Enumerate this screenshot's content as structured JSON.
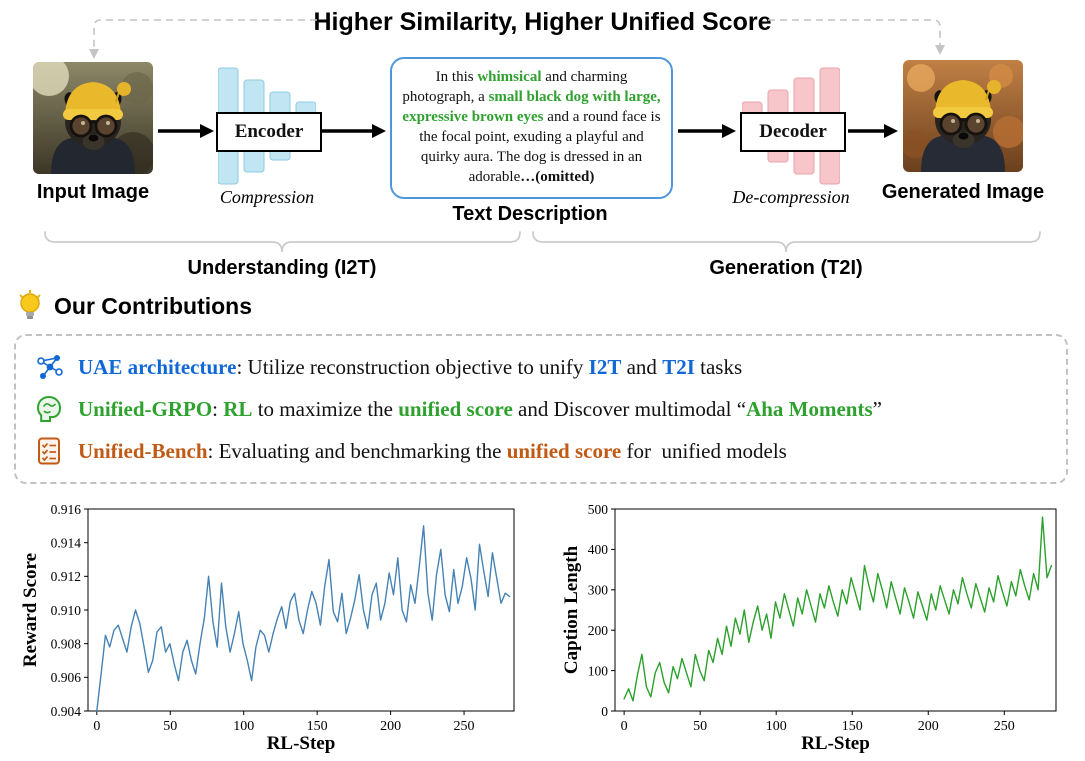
{
  "header": {
    "title": "Higher Similarity, Higher Unified Score"
  },
  "colors": {
    "green": "#2fa12f",
    "blue": "#1068d6",
    "orange": "#c05a15",
    "black": "#111111"
  },
  "pipeline": {
    "input_label": "Input Image",
    "encoder_label": "Encoder",
    "compression_label": "Compression",
    "decoder_label": "Decoder",
    "decompression_label": "De-compression",
    "generated_label": "Generated Image",
    "brace_left_label": "Understanding (I2T)",
    "brace_right_label": "Generation (T2I)",
    "text_box": {
      "label": "Text Description",
      "segments": [
        {
          "t": "In this ",
          "b": false,
          "c": ""
        },
        {
          "t": "whimsical",
          "b": true,
          "c": "green"
        },
        {
          "t": " and charming photograph, a ",
          "b": false,
          "c": ""
        },
        {
          "t": "small black dog with large, expressive brown eyes",
          "b": true,
          "c": "green"
        },
        {
          "t": " and a round face is the focal point, exuding a playful and quirky aura. The dog is dressed in an adorable",
          "b": false,
          "c": ""
        },
        {
          "t": "…(omitted)",
          "b": true,
          "c": ""
        }
      ]
    }
  },
  "contributions": {
    "heading": "Our Contributions",
    "items": [
      {
        "icon": "network-icon",
        "segments": [
          {
            "t": "UAE architecture",
            "b": true,
            "c": "blue"
          },
          {
            "t": ": Utilize reconstruction objective to unify ",
            "b": false,
            "c": ""
          },
          {
            "t": "I2T",
            "b": true,
            "c": "blue"
          },
          {
            "t": " and ",
            "b": false,
            "c": ""
          },
          {
            "t": "T2I",
            "b": true,
            "c": "blue"
          },
          {
            "t": " tasks",
            "b": false,
            "c": ""
          }
        ]
      },
      {
        "icon": "brain-icon",
        "segments": [
          {
            "t": "Unified-GRPO",
            "b": true,
            "c": "green"
          },
          {
            "t": ": ",
            "b": false,
            "c": ""
          },
          {
            "t": "RL",
            "b": true,
            "c": "green"
          },
          {
            "t": " to maximize the ",
            "b": false,
            "c": ""
          },
          {
            "t": "unified score",
            "b": true,
            "c": "green"
          },
          {
            "t": " and Discover multimodal “",
            "b": false,
            "c": ""
          },
          {
            "t": "Aha Moments",
            "b": true,
            "c": "green"
          },
          {
            "t": "”",
            "b": false,
            "c": ""
          }
        ]
      },
      {
        "icon": "checklist-icon",
        "segments": [
          {
            "t": "Unified-Bench",
            "b": true,
            "c": "orange"
          },
          {
            "t": ": Evaluating and benchmarking the ",
            "b": false,
            "c": ""
          },
          {
            "t": "unified score",
            "b": true,
            "c": "orange"
          },
          {
            "t": " for  unified models",
            "b": false,
            "c": ""
          }
        ]
      }
    ]
  },
  "chart_data": [
    {
      "type": "line",
      "title": "",
      "xlabel": "RL-Step",
      "ylabel": "Reward Score",
      "legend": null,
      "grid": false,
      "color": "#4682b4",
      "xlim": [
        -6,
        284
      ],
      "ylim": [
        0.904,
        0.916
      ],
      "xticks": [
        0,
        50,
        100,
        150,
        200,
        250
      ],
      "yticks": [
        0.904,
        0.906,
        0.908,
        0.91,
        0.912,
        0.914,
        0.916
      ],
      "ytick_decimals": 3,
      "x_max": 281,
      "values": [
        0.904,
        0.9062,
        0.9085,
        0.9078,
        0.9088,
        0.9091,
        0.9083,
        0.9075,
        0.909,
        0.91,
        0.9092,
        0.9078,
        0.9063,
        0.907,
        0.9087,
        0.909,
        0.9075,
        0.908,
        0.9068,
        0.9058,
        0.9075,
        0.9082,
        0.907,
        0.9062,
        0.908,
        0.9095,
        0.912,
        0.9093,
        0.9078,
        0.9116,
        0.909,
        0.9075,
        0.9086,
        0.9099,
        0.908,
        0.907,
        0.9058,
        0.9078,
        0.9088,
        0.9085,
        0.9075,
        0.9086,
        0.9095,
        0.9102,
        0.9089,
        0.9105,
        0.911,
        0.9094,
        0.9086,
        0.91,
        0.9111,
        0.9104,
        0.9091,
        0.9114,
        0.913,
        0.9099,
        0.9093,
        0.911,
        0.9086,
        0.9095,
        0.9106,
        0.9121,
        0.91,
        0.9089,
        0.9109,
        0.9116,
        0.9094,
        0.9104,
        0.9122,
        0.9109,
        0.9131,
        0.91,
        0.9093,
        0.9115,
        0.9104,
        0.9126,
        0.915,
        0.911,
        0.9094,
        0.9121,
        0.9136,
        0.9109,
        0.9099,
        0.9124,
        0.9104,
        0.9114,
        0.9131,
        0.9119,
        0.91,
        0.9139,
        0.9123,
        0.9108,
        0.9134,
        0.9119,
        0.9104,
        0.911,
        0.9108
      ]
    },
    {
      "type": "line",
      "title": "",
      "xlabel": "RL-Step",
      "ylabel": "Caption Length",
      "legend": null,
      "grid": false,
      "color": "#2ca02c",
      "xlim": [
        -6,
        284
      ],
      "ylim": [
        0,
        500
      ],
      "xticks": [
        0,
        50,
        100,
        150,
        200,
        250
      ],
      "yticks": [
        0,
        100,
        200,
        300,
        400,
        500
      ],
      "ytick_decimals": 0,
      "x_max": 281,
      "values": [
        30,
        55,
        25,
        90,
        140,
        60,
        35,
        95,
        120,
        70,
        45,
        110,
        80,
        130,
        95,
        60,
        140,
        100,
        75,
        150,
        120,
        180,
        140,
        210,
        160,
        230,
        190,
        250,
        170,
        220,
        260,
        200,
        240,
        180,
        270,
        230,
        290,
        250,
        210,
        280,
        240,
        300,
        260,
        220,
        290,
        255,
        310,
        270,
        235,
        300,
        265,
        330,
        290,
        250,
        360,
        310,
        270,
        340,
        300,
        255,
        320,
        280,
        240,
        305,
        270,
        230,
        295,
        260,
        225,
        290,
        250,
        310,
        275,
        240,
        300,
        265,
        330,
        290,
        255,
        315,
        280,
        245,
        305,
        270,
        335,
        295,
        260,
        320,
        285,
        350,
        310,
        275,
        340,
        300,
        480,
        330,
        360
      ]
    }
  ]
}
